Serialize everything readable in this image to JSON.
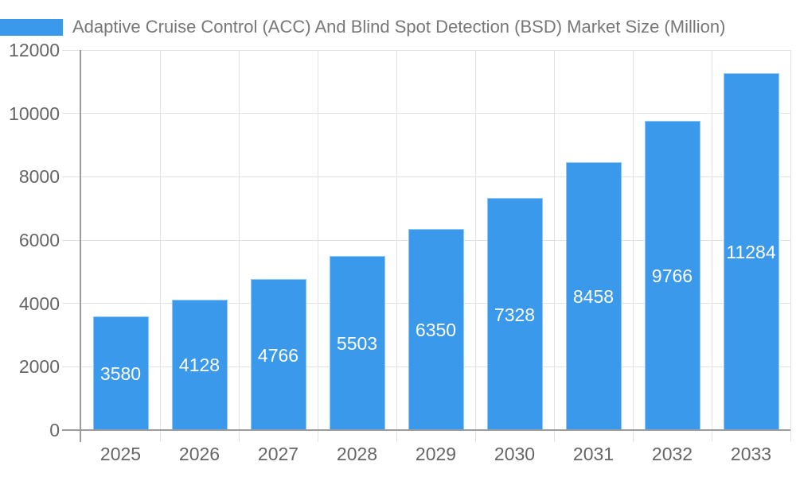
{
  "chart_data": {
    "type": "bar",
    "title": "Adaptive Cruise Control (ACC) And Blind Spot Detection (BSD) Market Size (Million)",
    "categories": [
      "2025",
      "2026",
      "2027",
      "2028",
      "2029",
      "2030",
      "2031",
      "2032",
      "2033"
    ],
    "values": [
      3580,
      4128,
      4766,
      5503,
      6350,
      7328,
      8458,
      9766,
      11284
    ],
    "xlabel": "",
    "ylabel": "",
    "ylim": [
      0,
      12000
    ],
    "ytick_step": 2000,
    "grid": true,
    "legend_position": "top-left",
    "colors": {
      "bar": "#3B99EC",
      "value_label": "#FFFFFF",
      "gridline": "#E2E2E2",
      "axis": "#9C9C9C",
      "tick_label": "#666666",
      "title": "#777777",
      "background": "#FFFFFF"
    }
  }
}
